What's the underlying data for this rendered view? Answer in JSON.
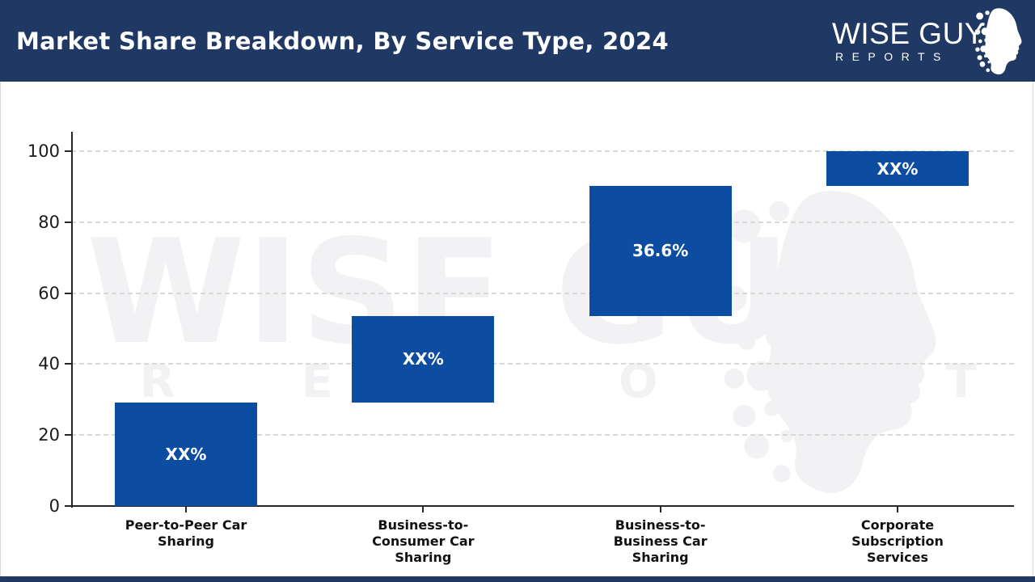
{
  "header": {
    "title": "Market Share Breakdown, By Service Type, 2024",
    "logo": {
      "name": "WISE GUY",
      "sub": "REPORTS"
    }
  },
  "watermark": {
    "big_text": "WISE GUY",
    "sub_text": "R E P O R T S"
  },
  "chart_data": {
    "type": "bar",
    "variant": "waterfall",
    "title": "Market Share Breakdown, By Service Type, 2024",
    "categories": [
      "Peer-to-Peer Car\nSharing",
      "Business-to-\nConsumer Car\nSharing",
      "Business-to-\nBusiness Car\nSharing",
      "Corporate\nSubscription\nServices"
    ],
    "segments": [
      {
        "category": "Peer-to-Peer Car Sharing",
        "label": "XX%",
        "start": 0,
        "end": 29.2
      },
      {
        "category": "Business-to-Consumer Car Sharing",
        "label": "XX%",
        "start": 29.2,
        "end": 53.6
      },
      {
        "category": "Business-to-Business Car Sharing",
        "label": "36.6%",
        "start": 53.6,
        "end": 90.2
      },
      {
        "category": "Corporate Subscription Services",
        "label": "XX%",
        "start": 90.2,
        "end": 100
      }
    ],
    "xlabel": "",
    "ylabel": "",
    "ylim": [
      0,
      100
    ],
    "yticks": [
      0,
      20,
      40,
      60,
      80,
      100
    ],
    "grid": "horizontal-dashed",
    "legend": "none",
    "bar_color": "#0c4da2",
    "bar_label_color": "#ffffff"
  },
  "colors": {
    "header_bg": "#1f3864",
    "footer_bg": "#1f3864",
    "bar": "#0c4da2",
    "axis": "#262626",
    "grid": "#d9d9d9",
    "watermark": "#f2f2f4",
    "title_text": "#ffffff"
  }
}
